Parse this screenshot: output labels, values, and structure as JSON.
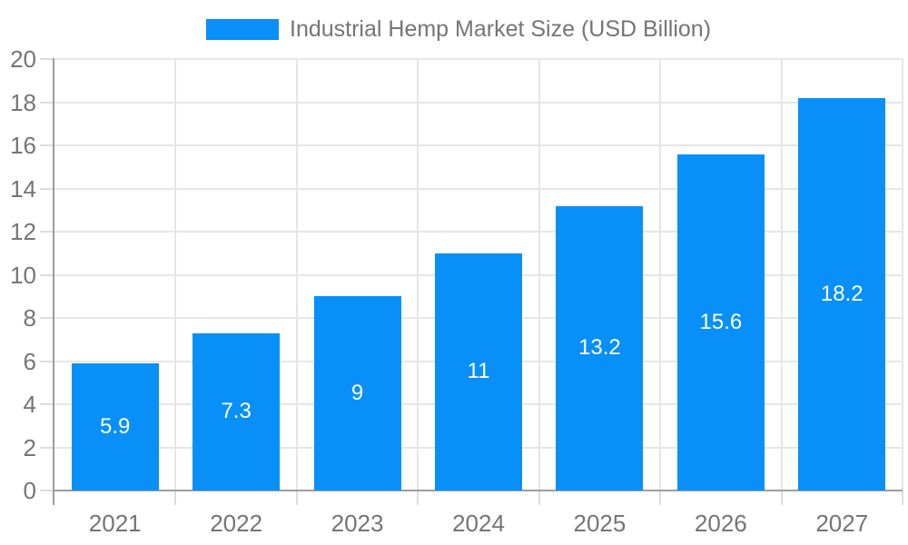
{
  "legend": {
    "label": "Industrial Hemp Market Size (USD Billion)"
  },
  "chart_data": {
    "type": "bar",
    "title": "Industrial Hemp Market Size (USD Billion)",
    "xlabel": "",
    "ylabel": "",
    "categories": [
      "2021",
      "2022",
      "2023",
      "2024",
      "2025",
      "2026",
      "2027"
    ],
    "values": [
      5.9,
      7.3,
      9,
      11,
      13.2,
      15.6,
      18.2
    ],
    "value_labels": [
      "5.9",
      "7.3",
      "9",
      "11",
      "13.2",
      "15.6",
      "18.2"
    ],
    "series": [
      {
        "name": "Industrial Hemp Market Size (USD Billion)",
        "values": [
          5.9,
          7.3,
          9,
          11,
          13.2,
          15.6,
          18.2
        ]
      }
    ],
    "ylim": [
      0,
      20
    ],
    "yticks": [
      0,
      2,
      4,
      6,
      8,
      10,
      12,
      14,
      16,
      18,
      20
    ],
    "grid": true,
    "legend_position": "top-center",
    "value_labels_placement": "centered-inside-bars",
    "colors": {
      "bar": "#0890F8",
      "value_label": "#FFFFFF",
      "axis_label": "#757575",
      "gridline": "#E6E6E6",
      "tick": "#DDDDDD",
      "axis_line": "#9E9E9E",
      "background": "#FFFFFF"
    }
  }
}
